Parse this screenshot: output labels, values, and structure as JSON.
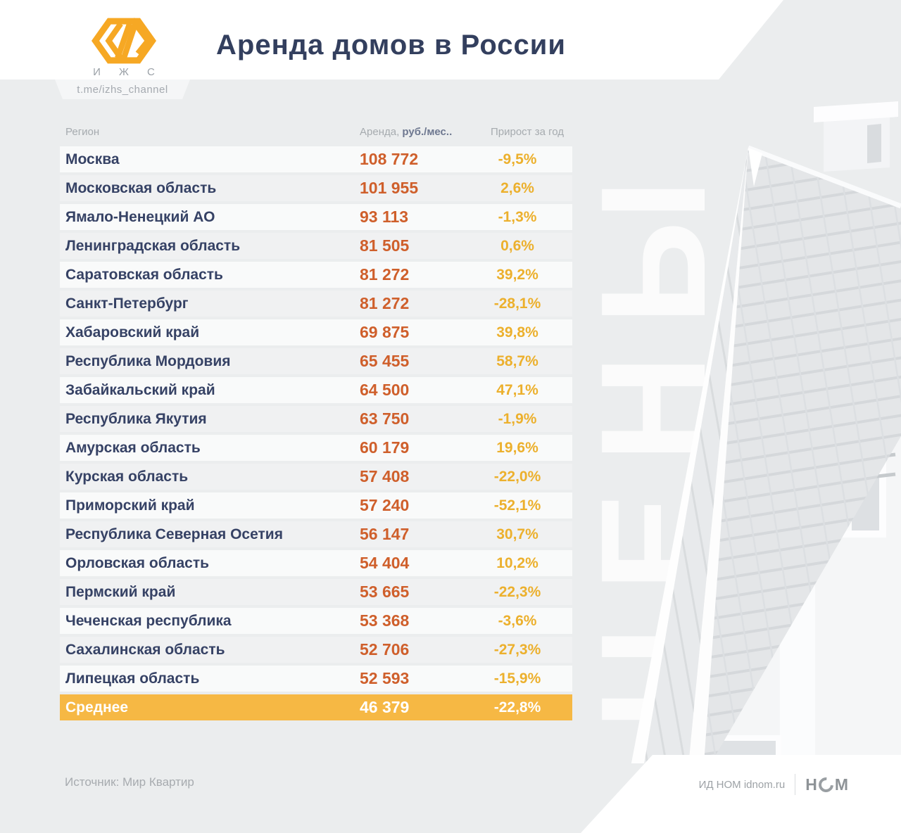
{
  "header": {
    "title": "Аренда домов в России",
    "logo_letters": "И Ж С",
    "channel": "t.me/izhs_channel"
  },
  "background": {
    "watermark": "ЦЕНЫ"
  },
  "table": {
    "columns": {
      "region": "Регион",
      "rent_prefix": "Аренда, ",
      "rent_unit": "руб./мес..",
      "growth": "Прирост за год"
    },
    "rows": [
      {
        "region": "Москва",
        "rent": "108 772",
        "growth": "-9,5%"
      },
      {
        "region": "Московская область",
        "rent": "101 955",
        "growth": "2,6%"
      },
      {
        "region": "Ямало-Ненецкий АО",
        "rent": "93 113",
        "growth": "-1,3%"
      },
      {
        "region": "Ленинградская область",
        "rent": "81 505",
        "growth": "0,6%"
      },
      {
        "region": "Саратовская область",
        "rent": "81 272",
        "growth": "39,2%"
      },
      {
        "region": "Санкт-Петербург",
        "rent": "81 272",
        "growth": "-28,1%"
      },
      {
        "region": "Хабаровский край",
        "rent": "69 875",
        "growth": "39,8%"
      },
      {
        "region": "Республика Мордовия",
        "rent": "65 455",
        "growth": "58,7%"
      },
      {
        "region": "Забайкальский край",
        "rent": "64 500",
        "growth": "47,1%"
      },
      {
        "region": "Республика Якутия",
        "rent": "63 750",
        "growth": "-1,9%"
      },
      {
        "region": "Амурская область",
        "rent": "60 179",
        "growth": "19,6%"
      },
      {
        "region": "Курская область",
        "rent": "57 408",
        "growth": "-22,0%"
      },
      {
        "region": "Приморский край",
        "rent": "57 240",
        "growth": "-52,1%"
      },
      {
        "region": "Республика Северная Осетия",
        "rent": "56 147",
        "growth": "30,7%"
      },
      {
        "region": "Орловская область",
        "rent": "54 404",
        "growth": "10,2%"
      },
      {
        "region": "Пермский край",
        "rent": "53 665",
        "growth": "-22,3%"
      },
      {
        "region": "Чеченская республика",
        "rent": "53 368",
        "growth": "-3,6%"
      },
      {
        "region": "Сахалинская область",
        "rent": "52 706",
        "growth": "-27,3%"
      },
      {
        "region": "Липецкая область",
        "rent": "52 593",
        "growth": "-15,9%"
      }
    ],
    "summary": {
      "region": "Среднее",
      "rent": "46 379",
      "growth": "-22,8%"
    }
  },
  "footer": {
    "source": "Источник: Мир Квартир",
    "publisher": "ИД НОМ idnom.ru",
    "logo_left": "Н",
    "logo_right": "М"
  },
  "colors": {
    "background": "#ebedee",
    "title": "#333f5e",
    "region_text": "#364265",
    "rent_value": "#cf5f2b",
    "growth_value": "#ecb02d",
    "summary_bg": "#f6b844",
    "logo_accent": "#f6a824"
  },
  "chart_data": {
    "type": "table",
    "title": "Аренда домов в России",
    "columns": [
      "Регион",
      "Аренда, руб./мес.",
      "Прирост за год, %"
    ],
    "rows": [
      [
        "Москва",
        108772,
        -9.5
      ],
      [
        "Московская область",
        101955,
        2.6
      ],
      [
        "Ямало-Ненецкий АО",
        93113,
        -1.3
      ],
      [
        "Ленинградская область",
        81505,
        0.6
      ],
      [
        "Саратовская область",
        81272,
        39.2
      ],
      [
        "Санкт-Петербург",
        81272,
        -28.1
      ],
      [
        "Хабаровский край",
        69875,
        39.8
      ],
      [
        "Республика Мордовия",
        65455,
        58.7
      ],
      [
        "Забайкальский край",
        64500,
        47.1
      ],
      [
        "Республика Якутия",
        63750,
        -1.9
      ],
      [
        "Амурская область",
        60179,
        19.6
      ],
      [
        "Курская область",
        57408,
        -22.0
      ],
      [
        "Приморский край",
        57240,
        -52.1
      ],
      [
        "Республика Северная Осетия",
        56147,
        30.7
      ],
      [
        "Орловская область",
        54404,
        10.2
      ],
      [
        "Пермский край",
        53665,
        -22.3
      ],
      [
        "Чеченская республика",
        53368,
        -3.6
      ],
      [
        "Сахалинская область",
        52706,
        -27.3
      ],
      [
        "Липецкая область",
        52593,
        -15.9
      ]
    ],
    "summary_row": [
      "Среднее",
      46379,
      -22.8
    ],
    "source": "Мир Квартир"
  }
}
